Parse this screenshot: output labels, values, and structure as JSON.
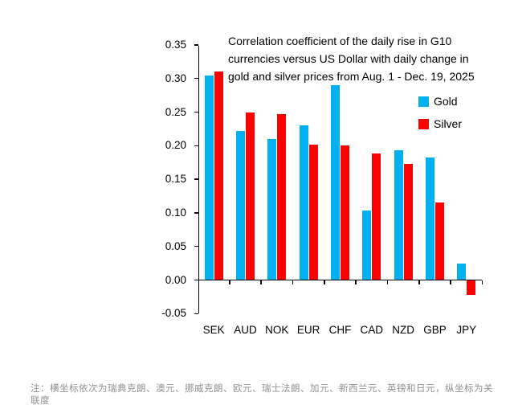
{
  "chart_data": {
    "type": "bar",
    "title": "Correlation coefficient of the daily rise in G10 currencies versus US Dollar with daily change in gold and silver prices from Aug. 1 - Dec. 19, 2025",
    "title_lines": [
      "Correlation coefficient of the daily rise in G10",
      "currencies versus US Dollar with daily change in",
      "gold and silver prices from Aug. 1 - Dec. 19, 2025"
    ],
    "categories": [
      "SEK",
      "AUD",
      "NOK",
      "EUR",
      "CHF",
      "CAD",
      "NZD",
      "GBP",
      "JPY"
    ],
    "series": [
      {
        "name": "Gold",
        "color": "#00B0F0",
        "values": [
          0.305,
          0.222,
          0.21,
          0.23,
          0.29,
          0.104,
          0.193,
          0.182,
          0.025
        ]
      },
      {
        "name": "Silver",
        "color": "#FF0000",
        "values": [
          0.311,
          0.249,
          0.247,
          0.202,
          0.2,
          0.188,
          0.173,
          0.116,
          -0.022
        ]
      }
    ],
    "y_ticks": [
      "0.35",
      "0.30",
      "0.25",
      "0.20",
      "0.15",
      "0.10",
      "0.05",
      "0.00",
      "-0.05"
    ],
    "ylim": [
      -0.05,
      0.35
    ],
    "xlabel": "",
    "ylabel": "",
    "grid": false,
    "legend_position": "upper-right-inside",
    "axis_color": "#000000"
  },
  "note": {
    "text": "注：横坐标依次为瑞典克朗、澳元、挪威克朗、欧元、瑞士法朗、加元、新西兰元、英镑和日元，纵坐标为关联度",
    "color": "#8f8f8f"
  }
}
